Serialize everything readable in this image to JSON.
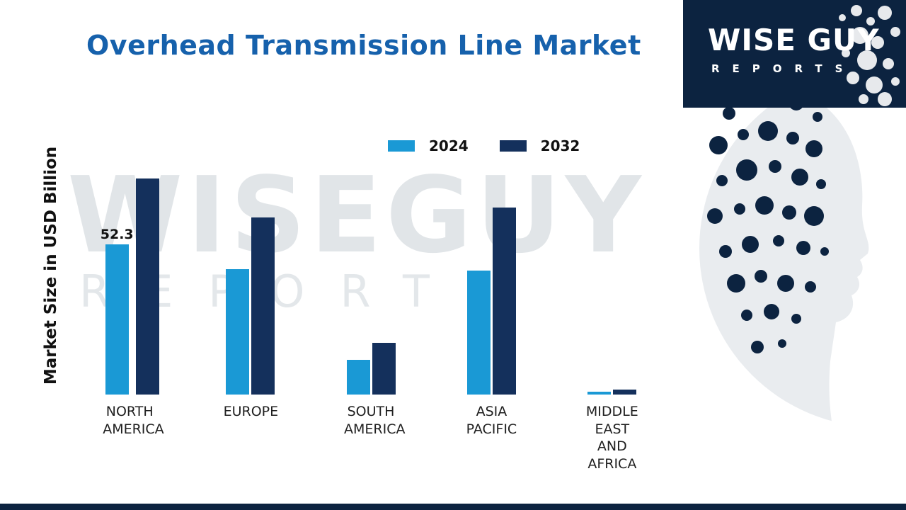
{
  "page": {
    "title": "Overhead Transmission Line Market"
  },
  "watermark": {
    "line1": "WISEGUY",
    "line2": "REPORTS"
  },
  "logo": {
    "line1": "WISE GUY",
    "line2": "REPORTS"
  },
  "colors": {
    "title": "#1661ac",
    "navy_block": "#0c2340",
    "series_2024": "#1a99d5",
    "series_2032": "#14305c",
    "watermark": "#c9d0d6",
    "head_circle": "#e9ecef"
  },
  "chart_data": {
    "type": "bar",
    "title": "Overhead Transmission Line Market",
    "ylabel": "Market Size in USD Billion",
    "categories": [
      "NORTH AMERICA",
      "EUROPE",
      "SOUTH AMERICA",
      "ASIA PACIFIC",
      "MIDDLE EAST AND AFRICA"
    ],
    "series": [
      {
        "name": "2024",
        "color": "#1a99d5",
        "values": [
          52.3,
          43.7,
          12.1,
          43.2,
          1.0
        ],
        "labels": [
          "52.3",
          null,
          null,
          null,
          null
        ]
      },
      {
        "name": "2032",
        "color": "#14305c",
        "values": [
          75.2,
          61.7,
          18.0,
          65.1,
          1.8
        ],
        "labels": [
          null,
          null,
          null,
          null,
          null
        ]
      }
    ],
    "ylim": [
      0,
      80
    ],
    "grid": false,
    "legend_position": "top-center"
  }
}
